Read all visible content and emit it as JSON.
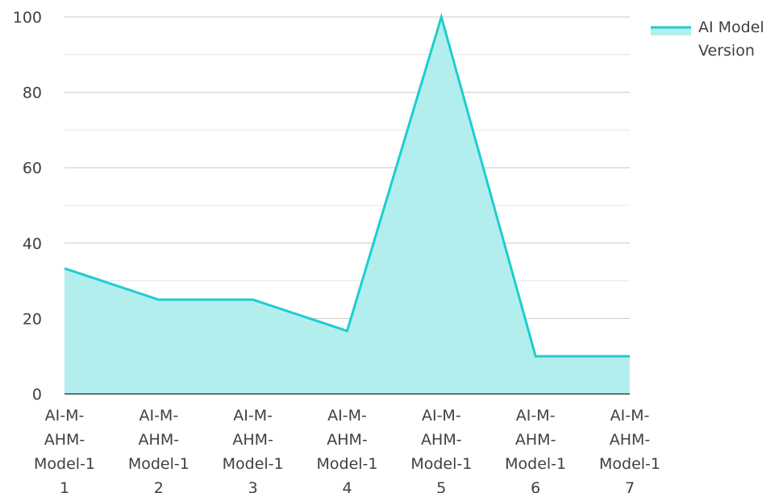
{
  "chart_data": {
    "type": "area",
    "categories": [
      [
        "AI-M-",
        "AHM-",
        "Model-1",
        "1"
      ],
      [
        "AI-M-",
        "AHM-",
        "Model-1",
        "2"
      ],
      [
        "AI-M-",
        "AHM-",
        "Model-1",
        "3"
      ],
      [
        "AI-M-",
        "AHM-",
        "Model-1",
        "4"
      ],
      [
        "AI-M-",
        "AHM-",
        "Model-1",
        "5"
      ],
      [
        "AI-M-",
        "AHM-",
        "Model-1",
        "6"
      ],
      [
        "AI-M-",
        "AHM-",
        "Model-1",
        "7"
      ]
    ],
    "series": [
      {
        "name": "AI Model Version",
        "legend_lines": [
          "AI Model",
          "Version"
        ],
        "values": [
          33.3,
          25,
          25,
          16.7,
          100,
          10,
          10
        ]
      }
    ],
    "ylim": [
      0,
      100
    ],
    "yticks": [
      0,
      20,
      40,
      60,
      80,
      100
    ],
    "grid": true,
    "legend": "top-right",
    "colors": {
      "line": "#1fcdcd",
      "fill": "#b3eeee",
      "grid_major": "#c8c8c8",
      "grid_minor": "#e4e4e4",
      "axis": "#404040"
    }
  }
}
